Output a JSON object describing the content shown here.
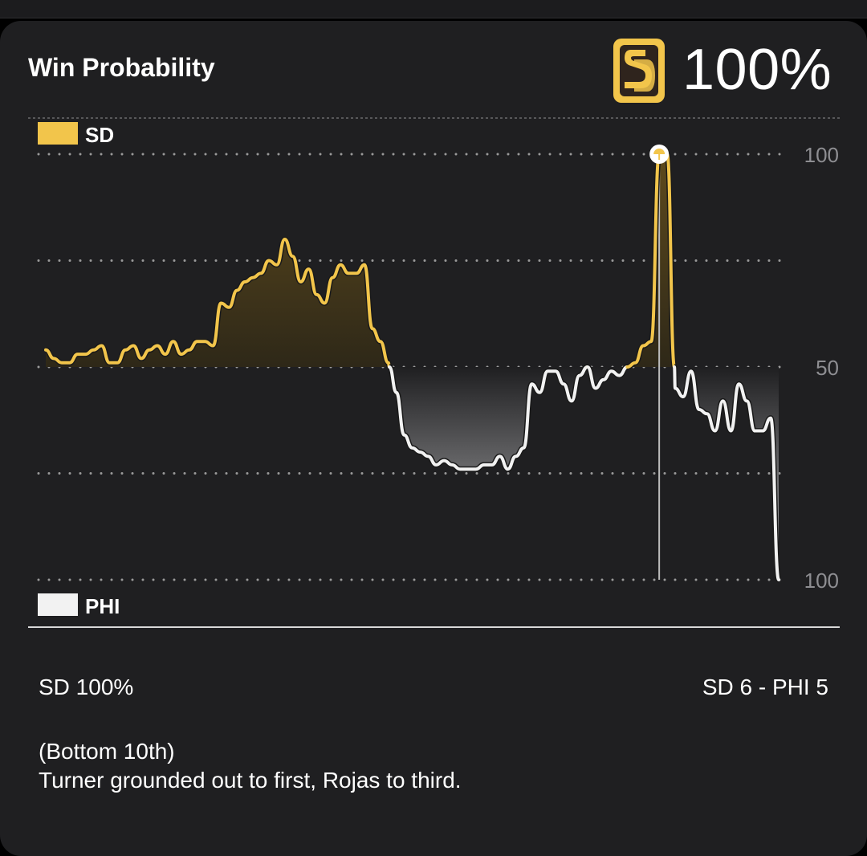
{
  "header": {
    "title": "Win Probability",
    "team_logo_text": "SD",
    "current_prob": "100%"
  },
  "legend": {
    "home_label": "SD",
    "away_label": "PHI",
    "home_color": "#f2c54b",
    "away_color": "#f2f2f2"
  },
  "chart_data": {
    "type": "area",
    "title": "Win Probability",
    "y_axis": {
      "range": [
        0,
        100
      ],
      "tick_labels": [
        "100",
        "50",
        "100"
      ]
    },
    "series": [
      {
        "name": "SD",
        "color": "#f2c54b"
      },
      {
        "name": "PHI",
        "color": "#f2f2f2"
      }
    ],
    "baseline": 50,
    "sd_win_probability": [
      54,
      52,
      51,
      51,
      53,
      53,
      54,
      55,
      51,
      51,
      54,
      55,
      52,
      54,
      55,
      53,
      56,
      53,
      54,
      56,
      56,
      55,
      65,
      64,
      68,
      70,
      71,
      72,
      75,
      74,
      80,
      76,
      70,
      73,
      67,
      65,
      71,
      74,
      72,
      72,
      74,
      59,
      56,
      51,
      44,
      34,
      31,
      30,
      29,
      27,
      28,
      27,
      26,
      26,
      26,
      27,
      27,
      29,
      26,
      29,
      31,
      46,
      44,
      49,
      49,
      46,
      42,
      48,
      50,
      45,
      47,
      49,
      48,
      50,
      51,
      55,
      56,
      100,
      100,
      45,
      43,
      49,
      40,
      39,
      35,
      42,
      35,
      46,
      42,
      35,
      35,
      38,
      0
    ],
    "current_point_index": 77,
    "legend_position": "left, top and bottom"
  },
  "footer": {
    "left_status": "SD 100%",
    "score": "SD 6 - PHI 5",
    "play_inning": "(Bottom 10th)",
    "play_description": "Turner grounded out to first, Rojas to third."
  }
}
